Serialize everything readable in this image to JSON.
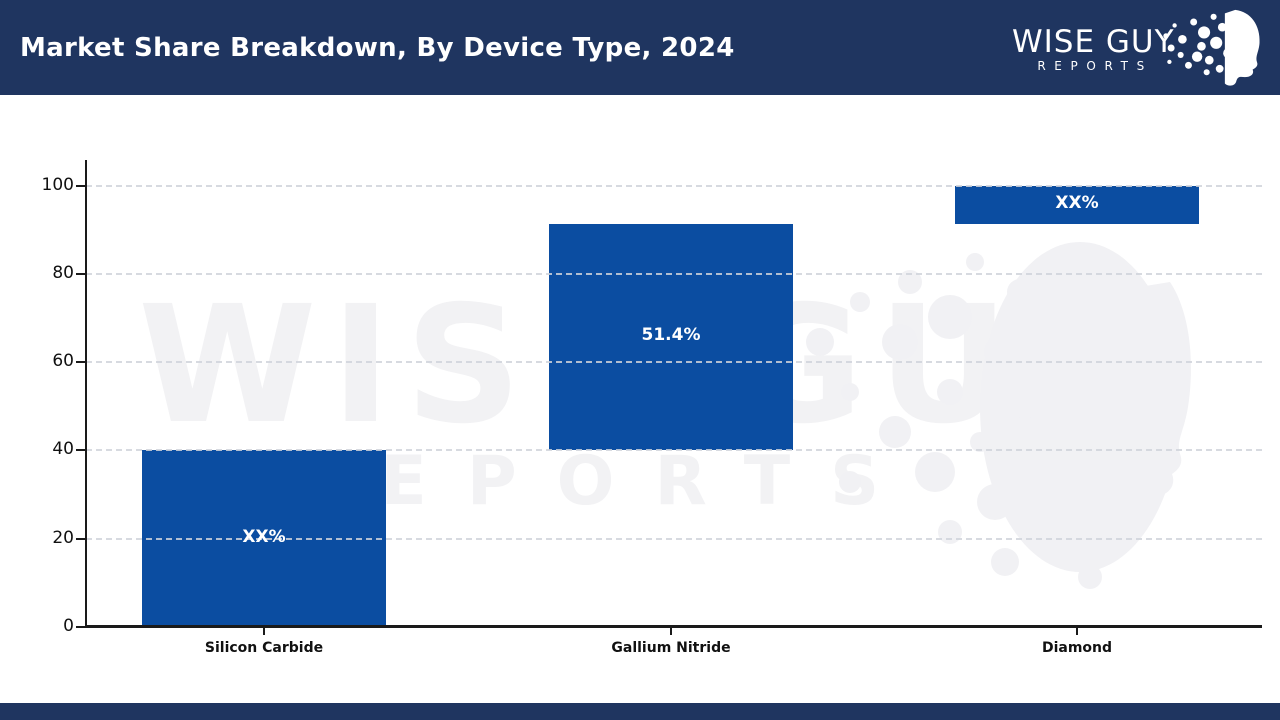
{
  "header": {
    "title": "Market Share Breakdown, By Device Type, 2024",
    "logo": {
      "line1": "WISE GUY",
      "line2": "REPORTS"
    }
  },
  "watermark": {
    "line1": "WISE GUY",
    "line2": "REPORTS"
  },
  "colors": {
    "header_bg": "#1F3560",
    "bar": "#0B4DA1",
    "axis": "#1a1a1a"
  },
  "chart_data": {
    "type": "bar",
    "subtype": "waterfall",
    "title": "Market Share Breakdown, By Device Type, 2024",
    "categories": [
      "Silicon Carbide",
      "Gallium Nitride",
      "Diamond"
    ],
    "bars": [
      {
        "category": "Silicon Carbide",
        "start": 0,
        "end": 40,
        "value": 40,
        "label": "XX%"
      },
      {
        "category": "Gallium Nitride",
        "start": 40,
        "end": 91.4,
        "value": 51.4,
        "label": "51.4%"
      },
      {
        "category": "Diamond",
        "start": 91.4,
        "end": 100,
        "value": 8.6,
        "label": "XX%"
      }
    ],
    "xlabel": "",
    "ylabel": "",
    "ylim": [
      0,
      100
    ],
    "yticks": [
      0,
      20,
      40,
      60,
      80,
      100
    ],
    "grid": "horizontal-dashed",
    "legend": "none",
    "bar_color": "#0B4DA1"
  }
}
